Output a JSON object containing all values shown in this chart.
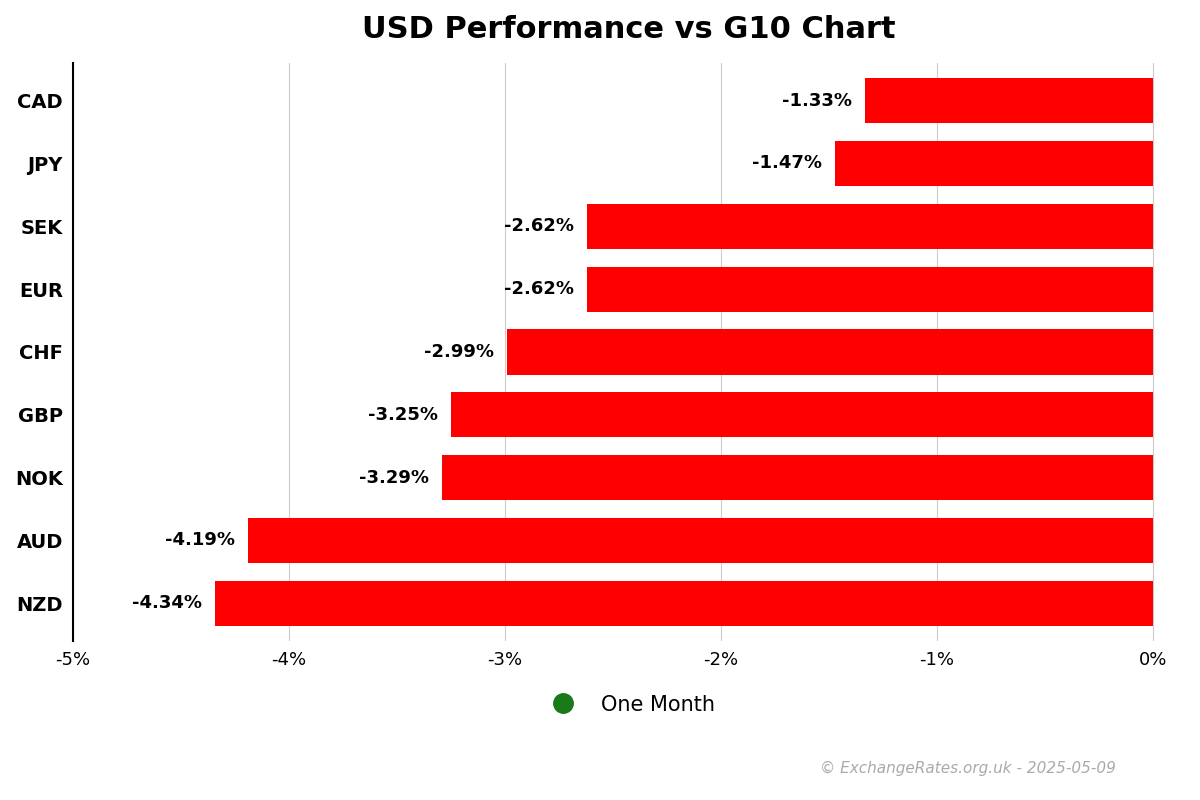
{
  "title": "USD Performance vs G10 Chart",
  "currencies": [
    "CAD",
    "JPY",
    "SEK",
    "EUR",
    "CHF",
    "GBP",
    "NOK",
    "AUD",
    "NZD"
  ],
  "values": [
    -1.33,
    -1.47,
    -2.62,
    -2.62,
    -2.99,
    -3.25,
    -3.29,
    -4.19,
    -4.34
  ],
  "labels": [
    "-1.33%",
    "-1.47%",
    "-2.62%",
    "-2.62%",
    "-2.99%",
    "-3.25%",
    "-3.29%",
    "-4.19%",
    "-4.34%"
  ],
  "bar_color": "#ff0000",
  "bar_height": 0.72,
  "xlim": [
    -5,
    0.15
  ],
  "xticks": [
    -5,
    -4,
    -3,
    -2,
    -1,
    0
  ],
  "xticklabels": [
    "-5%",
    "-4%",
    "-3%",
    "-2%",
    "-1%",
    "0%"
  ],
  "title_fontsize": 22,
  "title_fontweight": "bold",
  "label_fontsize": 13,
  "label_fontweight": "bold",
  "ytick_fontsize": 14,
  "xtick_fontsize": 13,
  "legend_label": "One Month",
  "legend_color": "#1a7a1a",
  "legend_fontsize": 15,
  "watermark": "© ExchangeRates.org.uk - 2025-05-09",
  "watermark_color": "#aaaaaa",
  "watermark_fontsize": 11,
  "bg_color": "#ffffff",
  "grid_color": "#cccccc",
  "spine_color": "#000000"
}
